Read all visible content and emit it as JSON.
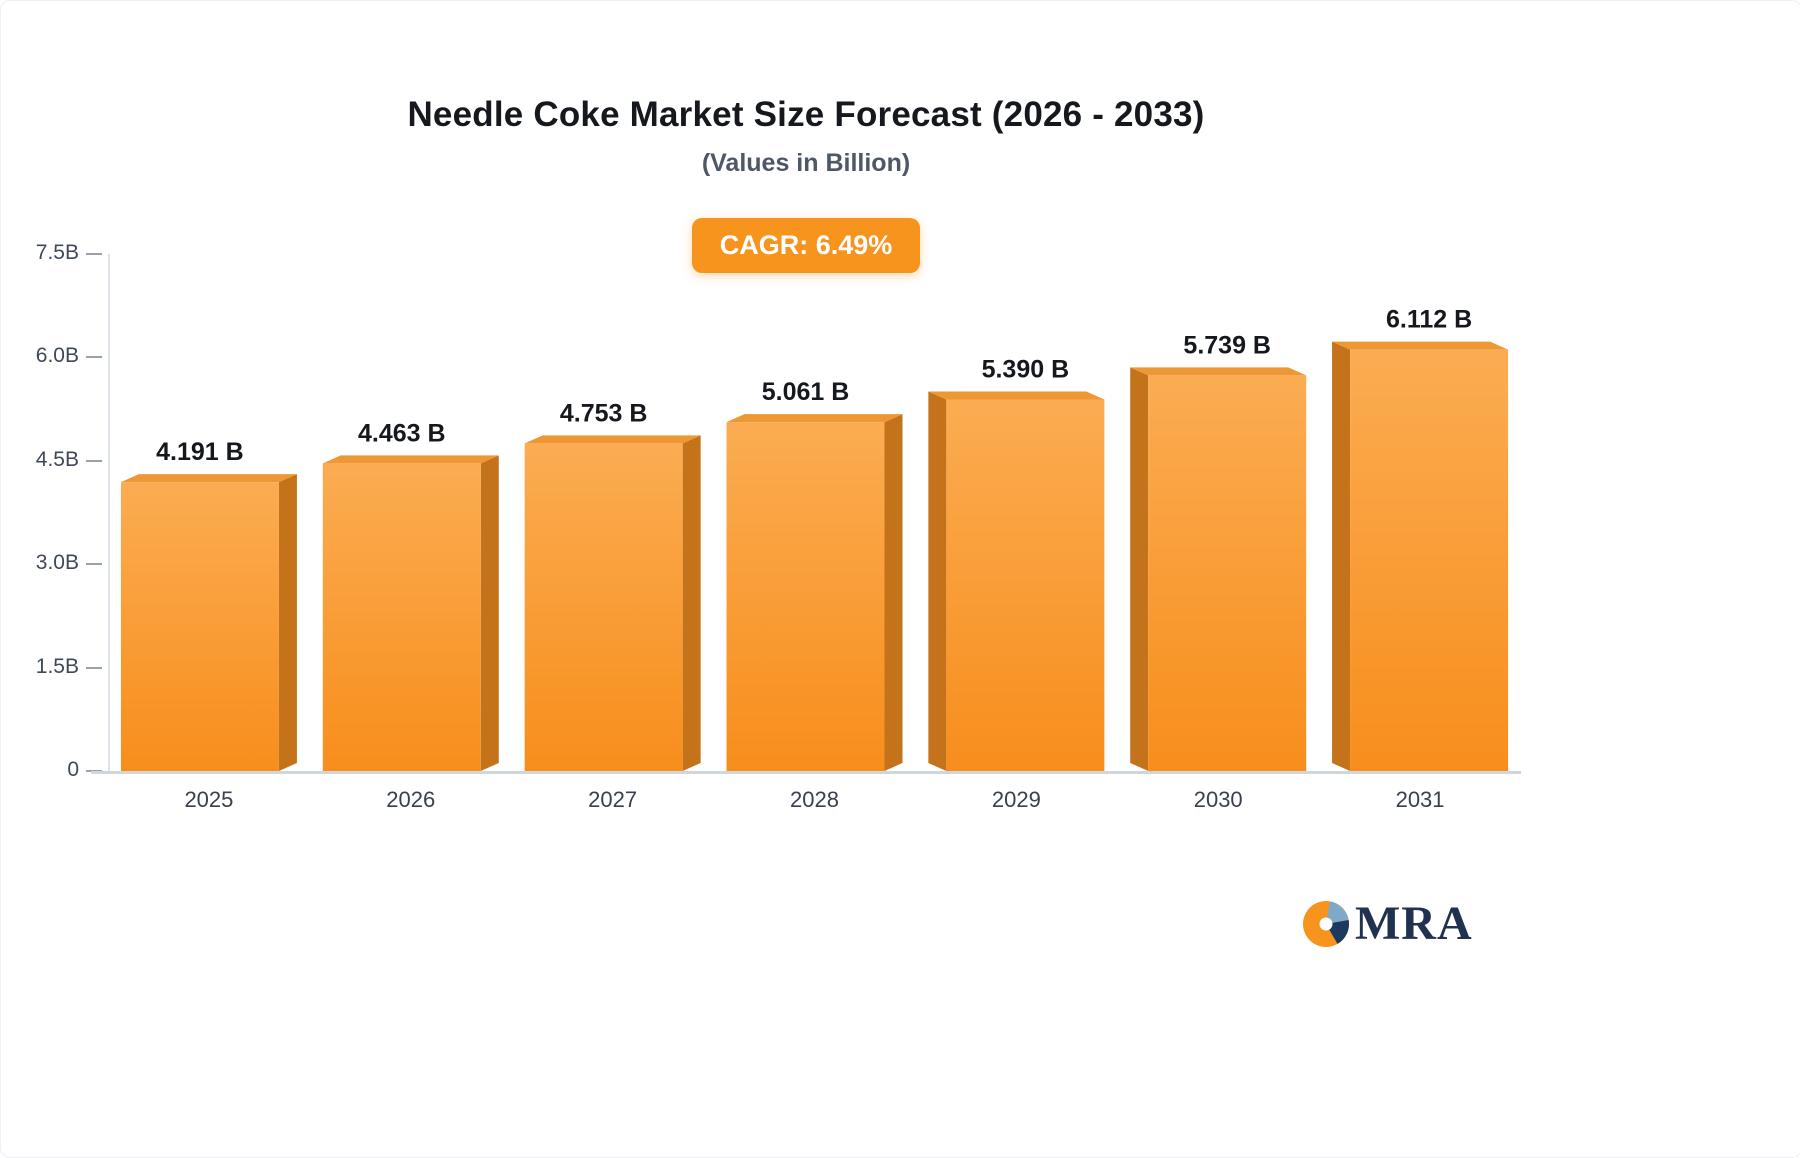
{
  "header": {
    "title": "Needle Coke Market Size Forecast (2026 - 2033)",
    "subtitle": "(Values in Billion)"
  },
  "badge": {
    "label": "CAGR: 6.49%",
    "background": "#F7941E",
    "text_color": "#FFFFFF"
  },
  "chart_data": {
    "type": "bar",
    "title": "Needle Coke Market Size Forecast (2026 - 2033)",
    "subtitle": "(Values in Billion)",
    "categories": [
      "2025",
      "2026",
      "2027",
      "2028",
      "2029",
      "2030",
      "2031"
    ],
    "values": [
      4.191,
      4.463,
      4.753,
      5.061,
      5.39,
      5.739,
      6.112
    ],
    "value_labels": [
      "4.191 B",
      "4.463 B",
      "4.753 B",
      "5.061 B",
      "5.390 B",
      "5.739 B",
      "6.112 B"
    ],
    "xlabel": "",
    "ylabel": "",
    "ylim": [
      0,
      7.5
    ],
    "yticks": [
      {
        "value": 7.5,
        "label": "7.5B"
      },
      {
        "value": 6.0,
        "label": "6.0B"
      },
      {
        "value": 4.5,
        "label": "4.5B"
      },
      {
        "value": 3.0,
        "label": "3.0B"
      },
      {
        "value": 1.5,
        "label": "1.5B"
      },
      {
        "value": 0,
        "label": "0"
      }
    ],
    "grid": false,
    "legend": "none",
    "bar_style": "3d",
    "annotations": [
      "CAGR: 6.49%"
    ],
    "colors": {
      "bar_gradient_top": "#FBAC52",
      "bar_gradient_bottom": "#F78E1C",
      "bar_side": "#C4731B",
      "bar_top_face": "#EE9735",
      "axis_line": "#DDE2E8",
      "baseline": "#CFD6DD",
      "tick_mark": "#9AA1AB",
      "tick_text": "#3F4856",
      "category_text": "#39414E",
      "value_text": "#15181D"
    }
  },
  "logo": {
    "text": "MRA",
    "text_color": "#20324F",
    "icon": "pie-chart-icon",
    "icon_colors": [
      "#F7941E",
      "#7FA8C9",
      "#1C3A5E",
      "#FFFFFF"
    ]
  }
}
